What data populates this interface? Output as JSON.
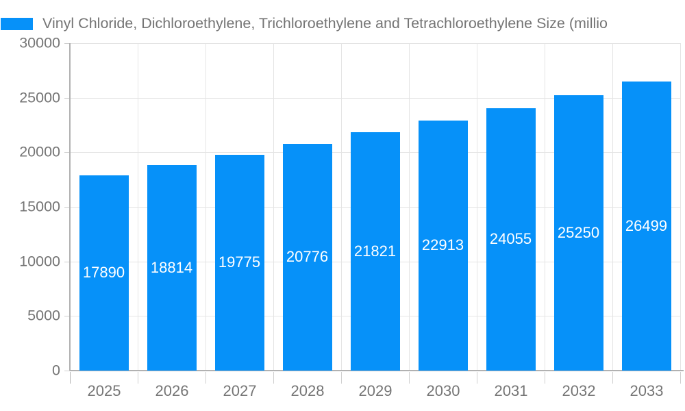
{
  "legend": {
    "label": "Vinyl Chloride, Dichloroethylene, Trichloroethylene and Tetrachloroethylene Size (millio",
    "swatch_color": "#0691f9"
  },
  "chart_data": {
    "type": "bar",
    "title": "Vinyl Chloride, Dichloroethylene, Trichloroethylene and Tetrachloroethylene Size (millio",
    "categories": [
      "2025",
      "2026",
      "2027",
      "2028",
      "2029",
      "2030",
      "2031",
      "2032",
      "2033"
    ],
    "values": [
      17890,
      18814,
      19775,
      20776,
      21821,
      22913,
      24055,
      25250,
      26499
    ],
    "value_labels": [
      "17890",
      "18814",
      "19775",
      "20776",
      "21821",
      "22913",
      "24055",
      "25250",
      "26499"
    ],
    "xlabel": "",
    "ylabel": "",
    "ylim": [
      0,
      30000
    ],
    "yticks": [
      0,
      5000,
      10000,
      15000,
      20000,
      25000,
      30000
    ],
    "ytick_labels": [
      "0",
      "5000",
      "10000",
      "15000",
      "20000",
      "25000",
      "30000"
    ],
    "grid": true,
    "legend_position": "top-left",
    "value_label_style": "inside-center-white"
  },
  "colors": {
    "bar": "#0691f9",
    "grid": "#e4e4e4",
    "axis": "#b1b1b1",
    "tick": "#cfcfcf",
    "text": "#757575",
    "value_label": "#ffffff",
    "background": "#ffffff"
  }
}
